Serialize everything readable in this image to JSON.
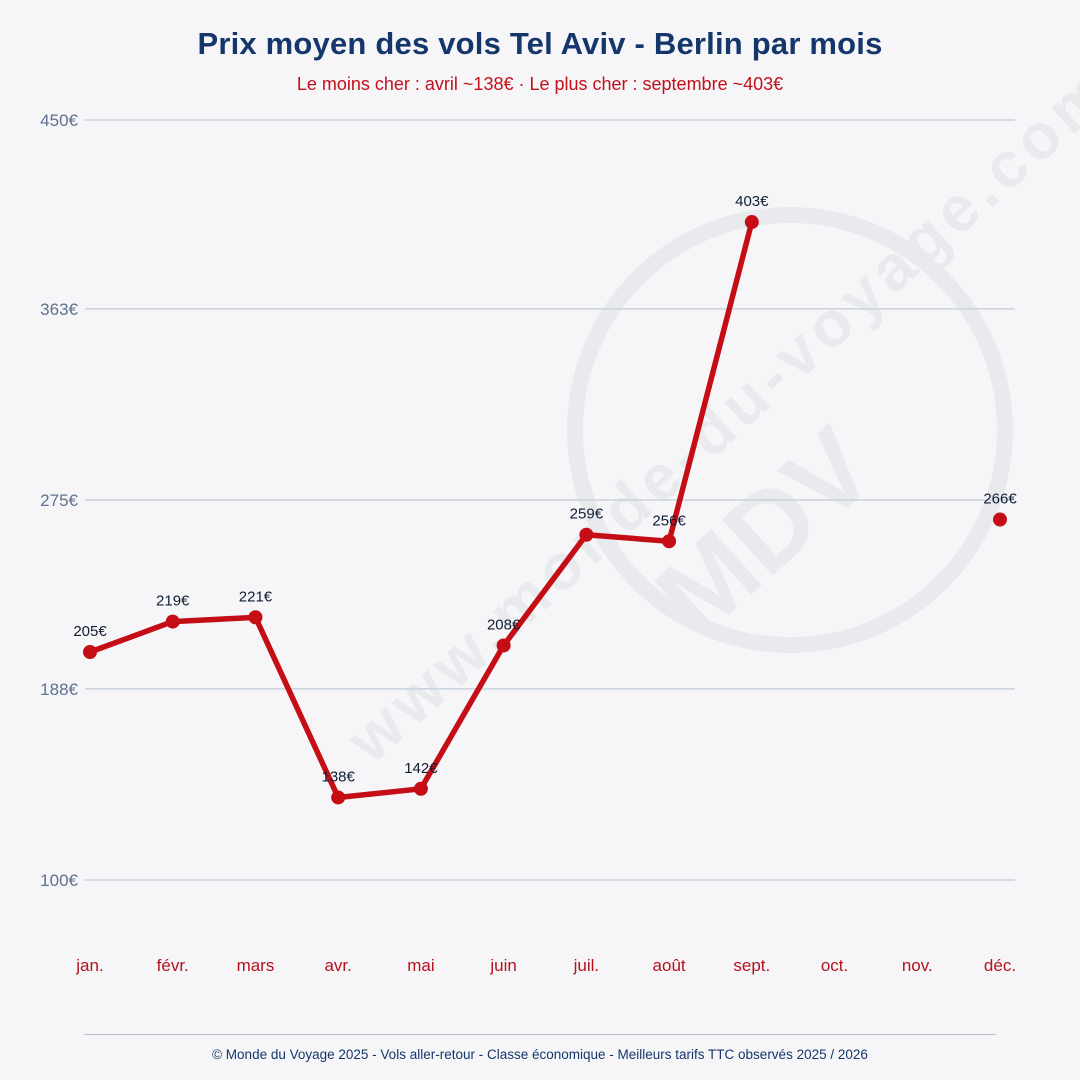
{
  "header": {
    "title": "Prix moyen des vols Tel Aviv - Berlin par mois",
    "subtitle": "Le moins cher : avril ~138€ · Le plus cher : septembre ~403€"
  },
  "watermark": {
    "url_text": "www.monde-du-voyage.com",
    "monogram": "MDV"
  },
  "footer": {
    "text": "© Monde du Voyage 2025 - Vols aller-retour - Classe économique - Meilleurs tarifs TTC observés 2025 / 2026"
  },
  "colors": {
    "background": "#f6f6f8",
    "title": "#15366b",
    "accent_red": "#c3101b",
    "line": "#c50d16",
    "grid": "#c9d2de",
    "ytick_label": "#5f718e",
    "xtick_label": "#b5121c",
    "point_label": "#101d33",
    "watermark": "#9aa0a8"
  },
  "chart_data": {
    "type": "line",
    "title": "Prix moyen des vols Tel Aviv - Berlin par mois",
    "xlabel": "",
    "ylabel": "",
    "categories": [
      "jan.",
      "févr.",
      "mars",
      "avr.",
      "mai",
      "juin",
      "juil.",
      "août",
      "sept.",
      "oct.",
      "nov.",
      "déc."
    ],
    "values": [
      205,
      219,
      221,
      138,
      142,
      208,
      259,
      256,
      403,
      null,
      null,
      266
    ],
    "point_labels": [
      "205€",
      "219€",
      "221€",
      "138€",
      "142€",
      "208€",
      "259€",
      "256€",
      "403€",
      null,
      null,
      "266€"
    ],
    "ylim": [
      100,
      450
    ],
    "yticks": [
      100,
      188,
      275,
      363,
      450
    ],
    "ytick_labels": [
      "100€",
      "188€",
      "275€",
      "363€",
      "450€"
    ],
    "grid": true,
    "legend": "none",
    "notes": "Line series jan-sept continuous; oct and nov missing; déc is an isolated point."
  }
}
